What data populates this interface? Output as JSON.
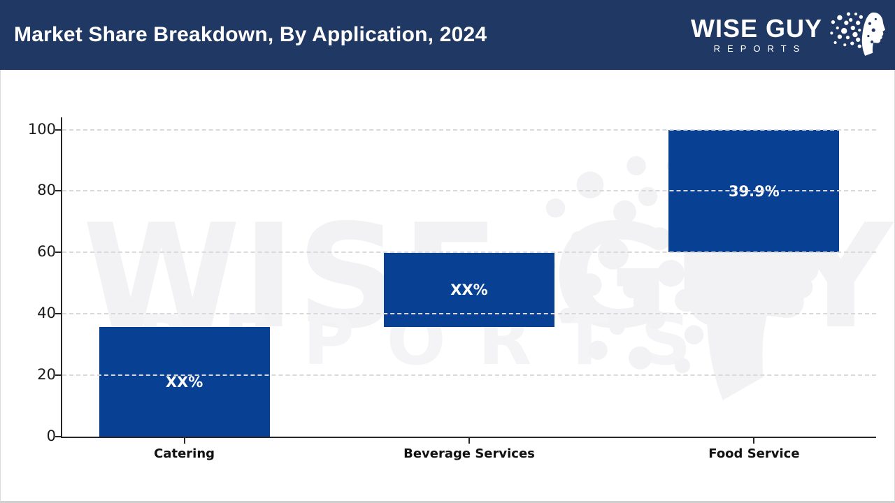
{
  "header": {
    "title": "Market Share Breakdown, By Application, 2024",
    "bg_color": "#1f3864",
    "logo": {
      "brand_top": "WISE GUY",
      "brand_bottom": "REPORTS"
    }
  },
  "watermark": {
    "line1": "WISE GUY",
    "line2": "REPORTS"
  },
  "chart_data": {
    "type": "bar",
    "subtype": "floating-waterfall",
    "title": "Market Share Breakdown, By Application, 2024",
    "categories": [
      "Catering",
      "Beverage Services",
      "Food Service"
    ],
    "segments": [
      {
        "category": "Catering",
        "start": 0,
        "end": 35.7,
        "value": 35.7,
        "value_label": "XX%"
      },
      {
        "category": "Beverage Services",
        "start": 35.7,
        "end": 59.9,
        "value": 24.2,
        "value_label": "XX%"
      },
      {
        "category": "Food Service",
        "start": 60,
        "end": 99.9,
        "value": 39.9,
        "value_label": "39.9%"
      }
    ],
    "yticks": [
      0,
      20,
      40,
      60,
      80,
      100
    ],
    "ylim": [
      0,
      104
    ],
    "xlabel": "",
    "ylabel": "",
    "legend": "none",
    "grid": "horizontal-dashed",
    "grid_color": "#d9d9d9",
    "bar_color": "#084194",
    "bar_label_color": "#ffffff",
    "axis_color": "#262626",
    "tick_label_color": "#1a1a1a"
  }
}
